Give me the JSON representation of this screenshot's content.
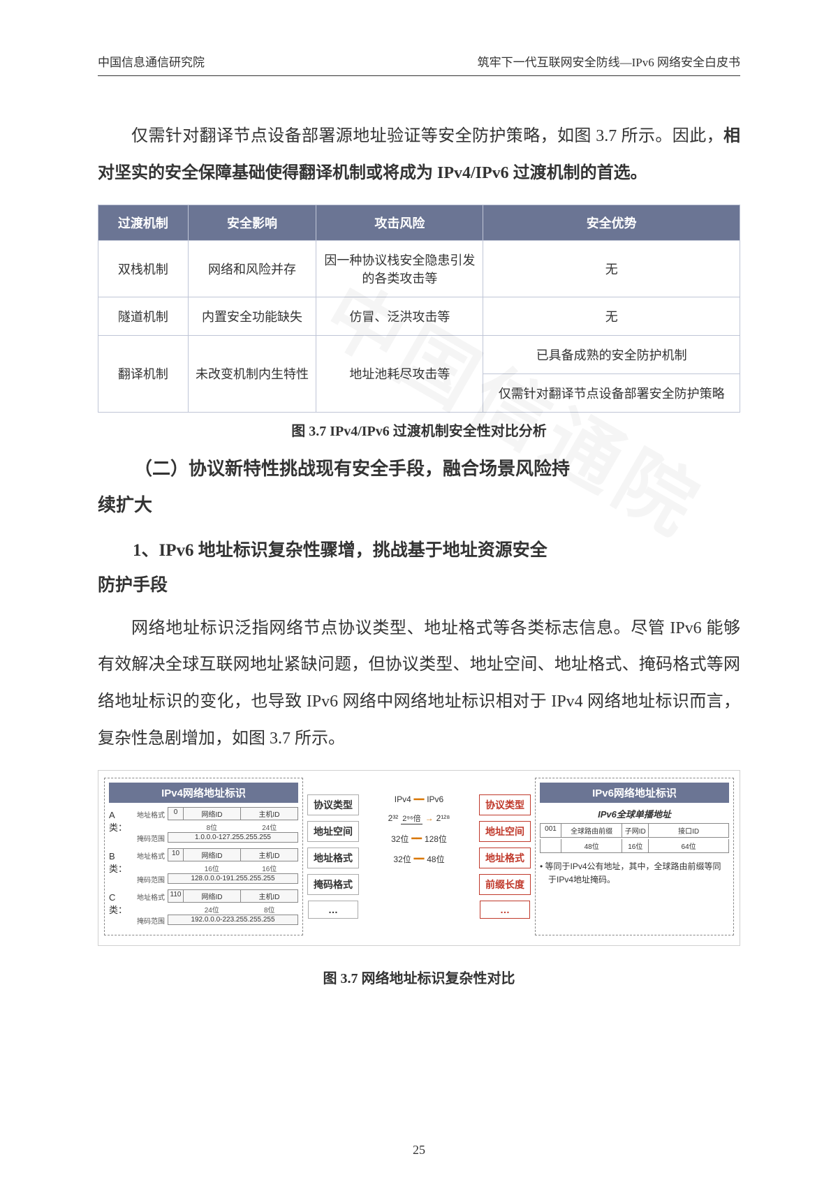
{
  "header": {
    "left": "中国信息通信研究院",
    "right": "筑牢下一代互联网安全防线—IPv6 网络安全白皮书"
  },
  "para_intro_plain": "仅需针对翻译节点设备部署源地址验证等安全防护策略，如图 3.7 所示。因此，",
  "para_intro_bold": "相对坚实的安全保障基础使得翻译机制或将成为 IPv4/IPv6 过渡机制的首选。",
  "table1": {
    "headers": [
      "过渡机制",
      "安全影响",
      "攻击风险",
      "安全优势"
    ],
    "rows": [
      [
        "双栈机制",
        "网络和风险并存",
        "因一种协议栈安全隐患引发的各类攻击等",
        "无"
      ],
      [
        "隧道机制",
        "内置安全功能缺失",
        "仿冒、泛洪攻击等",
        "无"
      ]
    ],
    "merged_row": {
      "c0": "翻译机制",
      "c1": "未改变机制内生特性",
      "c2": "地址池耗尽攻击等",
      "c3a": "已具备成熟的安全防护机制",
      "c3b": "仅需针对翻译节点设备部署安全防护策略"
    },
    "caption": "图 3.7 IPv4/IPv6 过渡机制安全性对比分析"
  },
  "h2": "（二）协议新特性挑战现有安全手段，融合场景风险持续扩大",
  "h3": "1、IPv6 地址标识复杂性骤增，挑战基于地址资源安全防护手段",
  "para2": "网络地址标识泛指网络节点协议类型、地址格式等各类标志信息。尽管 IPv6 能够有效解决全球互联网地址紧缺问题，但协议类型、地址空间、地址格式、掩码格式等网络地址标识的变化，也导致 IPv6 网络中网络地址标识相对于 IPv4 网络地址标识而言，复杂性急剧增加，如图 3.7 所示。",
  "fig2": {
    "left_title": "IPv4网络地址标识",
    "right_title": "IPv6网络地址标识",
    "right_subtitle": "IPv6全球单播地址",
    "classes": [
      {
        "label": "A类：",
        "fmt_label": "地址格式",
        "bits": [
          [
            "0",
            "网络ID",
            "主机ID"
          ],
          [
            "",
            "8位",
            "24位"
          ]
        ],
        "range_label": "掩码范围",
        "range": "1.0.0.0-127.255.255.255"
      },
      {
        "label": "B类：",
        "fmt_label": "地址格式",
        "bits": [
          [
            "10",
            "网络ID",
            "主机ID"
          ],
          [
            "",
            "16位",
            "16位"
          ]
        ],
        "range_label": "掩码范围",
        "range": "128.0.0.0-191.255.255.255"
      },
      {
        "label": "C类：",
        "fmt_label": "地址格式",
        "bits": [
          [
            "110",
            "网络ID",
            "主机ID"
          ],
          [
            "",
            "24位",
            "8位"
          ]
        ],
        "range_label": "掩码范围",
        "range": "192.0.0.0-223.255.255.255"
      }
    ],
    "mid_left_tags": [
      "协议类型",
      "地址空间",
      "地址格式",
      "掩码格式",
      "…"
    ],
    "mid_right_tags": [
      "协议类型",
      "地址空间",
      "地址格式",
      "前缀长度",
      "…"
    ],
    "mid_center": [
      {
        "l": "IPv4",
        "r": "IPv6"
      },
      {
        "l": "2³²",
        "m": "2⁹⁶倍",
        "r": "2¹²⁸"
      },
      {
        "l": "32位",
        "r": "128位"
      },
      {
        "l": "32位",
        "r": "48位"
      }
    ],
    "right_bits_header": [
      "001",
      "全球路由前缀",
      "子网ID",
      "接口ID"
    ],
    "right_bits_widths": [
      "",
      "48位",
      "16位",
      "64位"
    ],
    "right_note": "等同于IPv4公有地址，其中，全球路由前缀等同于IPv4地址掩码。",
    "caption": "图 3.7  网络地址标识复杂性对比"
  },
  "pagenum": "25",
  "watermark": "中国信通院"
}
